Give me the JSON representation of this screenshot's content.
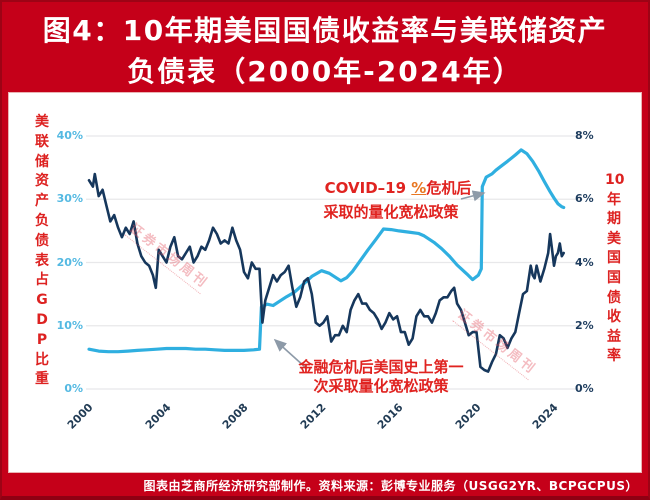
{
  "title": {
    "line1": "图4：10年期美国国债收益率与美联储资产",
    "line2": "负债表（2000年-2024年）"
  },
  "axes": {
    "left": {
      "title": "美联储资产负债表占GDP比重",
      "title_chars": [
        "美",
        "联",
        "储",
        "资",
        "产",
        "负",
        "债",
        "表",
        "占",
        "G",
        "D",
        "P",
        "比",
        "重"
      ],
      "ticks": [
        "40%",
        "30%",
        "20%",
        "10%",
        "0%"
      ],
      "range": [
        0,
        40
      ]
    },
    "right": {
      "title": "10年期美国国债收益率",
      "title_chars": [
        "10",
        "年",
        "期",
        "美",
        "国",
        "国",
        "债",
        "收",
        "益",
        "率"
      ],
      "ticks": [
        "8%",
        "6%",
        "4%",
        "2%",
        "0%"
      ],
      "range": [
        0,
        8
      ]
    },
    "x": {
      "ticks": [
        "2000",
        "2004",
        "2008",
        "2012",
        "2016",
        "2020",
        "2024"
      ]
    }
  },
  "annotations": {
    "covid": {
      "line1_prefix": "COVID–19 ",
      "line1_pct": "%",
      "line1_suffix": "危机后",
      "line2": "采取的量化宽松政策"
    },
    "crisis": {
      "line1": "金融危机后美国史上第一",
      "line2": "次采取量化宽松政策"
    }
  },
  "watermark": {
    "text": "证券市场周刊"
  },
  "footer": {
    "source_text": "图表由芝商所经济研究部制作。资料来源：彭博专业服务（USGG2YR、BCPGCPUS）"
  },
  "colors": {
    "background_red": "#c50019",
    "border_dark_red": "#9d0315",
    "fed_line_cyan": "#2fafe0",
    "yield_line_navy": "#16375c",
    "left_tick_cyan": "#54b9e2",
    "right_tick_navy": "#1d3c5e",
    "annotation_red": "#e02320",
    "grid_gray": "#e8e8ea",
    "arrow_gray": "#8d9aa8",
    "title_white": "#ffffff"
  },
  "chart_data": {
    "type": "line",
    "title": "10年期美国国债收益率与美联储资产负债表（2000年-2024年）",
    "x_range": [
      2000,
      2024.6
    ],
    "x_tick_years": [
      2000,
      2004,
      2008,
      2012,
      2016,
      2020,
      2024
    ],
    "left_axis": {
      "label": "美联储资产负债表占GDP比重",
      "range": [
        0,
        40
      ],
      "unit": "%"
    },
    "right_axis": {
      "label": "10年期美国国债收益率",
      "range": [
        0,
        8
      ],
      "unit": "%"
    },
    "grid": true,
    "legend": "none",
    "series": [
      {
        "name": "美联储资产负债表占GDP比重",
        "axis": "left",
        "color": "#2fafe0",
        "points": [
          [
            2000.0,
            6.3
          ],
          [
            2000.5,
            6.0
          ],
          [
            2001.0,
            5.9
          ],
          [
            2001.5,
            5.9
          ],
          [
            2002.0,
            6.0
          ],
          [
            2002.5,
            6.1
          ],
          [
            2003.0,
            6.2
          ],
          [
            2003.5,
            6.3
          ],
          [
            2004.0,
            6.4
          ],
          [
            2004.5,
            6.4
          ],
          [
            2005.0,
            6.4
          ],
          [
            2005.5,
            6.3
          ],
          [
            2006.0,
            6.3
          ],
          [
            2006.5,
            6.2
          ],
          [
            2007.0,
            6.1
          ],
          [
            2007.5,
            6.1
          ],
          [
            2008.0,
            6.1
          ],
          [
            2008.5,
            6.2
          ],
          [
            2008.8,
            6.3
          ],
          [
            2008.9,
            13.0
          ],
          [
            2009.2,
            13.4
          ],
          [
            2009.5,
            13.2
          ],
          [
            2009.8,
            13.8
          ],
          [
            2010.2,
            14.6
          ],
          [
            2010.6,
            15.3
          ],
          [
            2011.0,
            16.4
          ],
          [
            2011.5,
            17.8
          ],
          [
            2012.0,
            18.7
          ],
          [
            2012.4,
            18.3
          ],
          [
            2012.8,
            17.5
          ],
          [
            2013.0,
            17.1
          ],
          [
            2013.3,
            17.6
          ],
          [
            2013.6,
            18.6
          ],
          [
            2014.0,
            20.3
          ],
          [
            2014.4,
            22.0
          ],
          [
            2014.8,
            23.6
          ],
          [
            2015.2,
            25.3
          ],
          [
            2015.6,
            25.2
          ],
          [
            2016.0,
            25.0
          ],
          [
            2016.5,
            24.8
          ],
          [
            2017.0,
            24.6
          ],
          [
            2017.3,
            24.2
          ],
          [
            2017.8,
            23.2
          ],
          [
            2018.2,
            22.2
          ],
          [
            2018.6,
            21.0
          ],
          [
            2019.0,
            19.6
          ],
          [
            2019.5,
            18.2
          ],
          [
            2019.8,
            17.3
          ],
          [
            2020.1,
            18.0
          ],
          [
            2020.25,
            19.0
          ],
          [
            2020.3,
            32.0
          ],
          [
            2020.5,
            33.5
          ],
          [
            2020.8,
            34.0
          ],
          [
            2021.0,
            34.6
          ],
          [
            2021.3,
            35.3
          ],
          [
            2021.6,
            36.0
          ],
          [
            2022.0,
            37.0
          ],
          [
            2022.3,
            37.8
          ],
          [
            2022.6,
            37.2
          ],
          [
            2022.9,
            36.0
          ],
          [
            2023.2,
            34.5
          ],
          [
            2023.5,
            32.8
          ],
          [
            2023.8,
            31.2
          ],
          [
            2024.0,
            30.2
          ],
          [
            2024.2,
            29.3
          ],
          [
            2024.4,
            28.8
          ],
          [
            2024.5,
            28.7
          ]
        ]
      },
      {
        "name": "10年期美国国债收益率",
        "axis": "right",
        "color": "#16375c",
        "points": [
          [
            2000.0,
            6.6
          ],
          [
            2000.2,
            6.4
          ],
          [
            2000.3,
            6.8
          ],
          [
            2000.5,
            6.1
          ],
          [
            2000.7,
            6.3
          ],
          [
            2000.9,
            5.8
          ],
          [
            2001.1,
            5.3
          ],
          [
            2001.3,
            5.5
          ],
          [
            2001.5,
            5.1
          ],
          [
            2001.7,
            4.8
          ],
          [
            2001.9,
            5.1
          ],
          [
            2002.1,
            4.9
          ],
          [
            2002.3,
            5.3
          ],
          [
            2002.5,
            4.6
          ],
          [
            2002.7,
            4.2
          ],
          [
            2002.9,
            4.0
          ],
          [
            2003.1,
            3.9
          ],
          [
            2003.3,
            3.6
          ],
          [
            2003.45,
            3.2
          ],
          [
            2003.6,
            4.4
          ],
          [
            2003.8,
            4.2
          ],
          [
            2004.0,
            4.0
          ],
          [
            2004.2,
            4.5
          ],
          [
            2004.4,
            4.8
          ],
          [
            2004.6,
            4.2
          ],
          [
            2004.8,
            4.1
          ],
          [
            2005.0,
            4.3
          ],
          [
            2005.2,
            4.5
          ],
          [
            2005.4,
            4.0
          ],
          [
            2005.6,
            4.2
          ],
          [
            2005.8,
            4.5
          ],
          [
            2006.0,
            4.4
          ],
          [
            2006.2,
            4.7
          ],
          [
            2006.4,
            5.1
          ],
          [
            2006.6,
            4.9
          ],
          [
            2006.8,
            4.6
          ],
          [
            2007.0,
            4.7
          ],
          [
            2007.2,
            4.6
          ],
          [
            2007.4,
            5.1
          ],
          [
            2007.6,
            4.7
          ],
          [
            2007.8,
            4.4
          ],
          [
            2008.0,
            3.7
          ],
          [
            2008.2,
            3.5
          ],
          [
            2008.4,
            4.0
          ],
          [
            2008.6,
            3.8
          ],
          [
            2008.8,
            3.8
          ],
          [
            2008.95,
            2.1
          ],
          [
            2009.1,
            2.8
          ],
          [
            2009.3,
            3.2
          ],
          [
            2009.5,
            3.6
          ],
          [
            2009.7,
            3.4
          ],
          [
            2009.9,
            3.6
          ],
          [
            2010.1,
            3.7
          ],
          [
            2010.3,
            3.9
          ],
          [
            2010.5,
            3.2
          ],
          [
            2010.7,
            2.6
          ],
          [
            2010.9,
            2.9
          ],
          [
            2011.1,
            3.4
          ],
          [
            2011.3,
            3.5
          ],
          [
            2011.5,
            3.0
          ],
          [
            2011.7,
            2.1
          ],
          [
            2011.9,
            2.0
          ],
          [
            2012.1,
            2.1
          ],
          [
            2012.3,
            2.3
          ],
          [
            2012.5,
            1.5
          ],
          [
            2012.7,
            1.7
          ],
          [
            2012.9,
            1.7
          ],
          [
            2013.1,
            2.0
          ],
          [
            2013.3,
            1.8
          ],
          [
            2013.5,
            2.5
          ],
          [
            2013.7,
            2.8
          ],
          [
            2013.9,
            3.0
          ],
          [
            2014.1,
            2.7
          ],
          [
            2014.3,
            2.7
          ],
          [
            2014.5,
            2.5
          ],
          [
            2014.7,
            2.4
          ],
          [
            2014.9,
            2.2
          ],
          [
            2015.1,
            1.9
          ],
          [
            2015.3,
            2.1
          ],
          [
            2015.5,
            2.4
          ],
          [
            2015.7,
            2.2
          ],
          [
            2015.9,
            2.3
          ],
          [
            2016.1,
            1.8
          ],
          [
            2016.3,
            1.8
          ],
          [
            2016.5,
            1.4
          ],
          [
            2016.7,
            1.6
          ],
          [
            2016.9,
            2.3
          ],
          [
            2017.1,
            2.5
          ],
          [
            2017.3,
            2.3
          ],
          [
            2017.5,
            2.3
          ],
          [
            2017.7,
            2.1
          ],
          [
            2017.9,
            2.4
          ],
          [
            2018.1,
            2.8
          ],
          [
            2018.3,
            2.9
          ],
          [
            2018.5,
            2.9
          ],
          [
            2018.7,
            3.1
          ],
          [
            2018.85,
            3.2
          ],
          [
            2019.0,
            2.7
          ],
          [
            2019.2,
            2.5
          ],
          [
            2019.4,
            2.1
          ],
          [
            2019.6,
            1.7
          ],
          [
            2019.8,
            1.8
          ],
          [
            2020.0,
            1.8
          ],
          [
            2020.2,
            0.7
          ],
          [
            2020.4,
            0.6
          ],
          [
            2020.6,
            0.55
          ],
          [
            2020.8,
            0.85
          ],
          [
            2021.0,
            1.1
          ],
          [
            2021.2,
            1.7
          ],
          [
            2021.4,
            1.6
          ],
          [
            2021.6,
            1.3
          ],
          [
            2021.8,
            1.6
          ],
          [
            2022.0,
            1.8
          ],
          [
            2022.2,
            2.4
          ],
          [
            2022.4,
            3.0
          ],
          [
            2022.6,
            3.1
          ],
          [
            2022.8,
            3.9
          ],
          [
            2022.9,
            3.6
          ],
          [
            2023.0,
            3.5
          ],
          [
            2023.1,
            3.9
          ],
          [
            2023.3,
            3.4
          ],
          [
            2023.5,
            3.8
          ],
          [
            2023.7,
            4.3
          ],
          [
            2023.8,
            4.9
          ],
          [
            2023.9,
            4.4
          ],
          [
            2024.0,
            3.9
          ],
          [
            2024.1,
            4.2
          ],
          [
            2024.2,
            4.3
          ],
          [
            2024.3,
            4.6
          ],
          [
            2024.4,
            4.2
          ],
          [
            2024.5,
            4.3
          ]
        ]
      }
    ]
  }
}
